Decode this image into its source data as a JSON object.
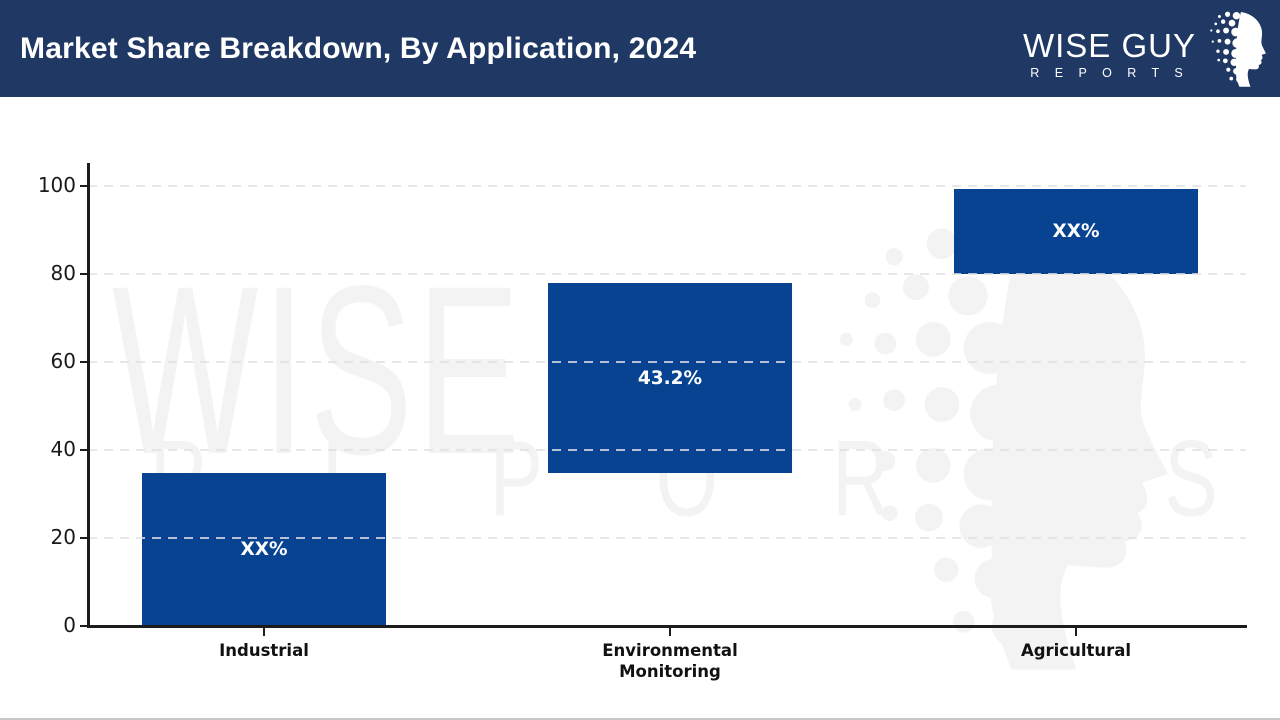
{
  "header": {
    "title": "Market Share Breakdown, By Application, 2024",
    "logo": {
      "wordmark": "WISE GUY",
      "subtext": "R E P O R T S"
    }
  },
  "watermark": {
    "word": "WISE",
    "subtext": "R E P O R T S"
  },
  "colors": {
    "header_bg": "#203864",
    "bar_blue": "#074391",
    "axis": "#1c1c1c",
    "gridline": "#e1e1e4",
    "watermark": "#f3f3f3",
    "bar_label": "#ffffff"
  },
  "chart_data": {
    "type": "bar",
    "subtype": "waterfall",
    "title": "Market Share Breakdown, By Application, 2024",
    "xlabel": "",
    "ylabel": "",
    "ylim": [
      0,
      100
    ],
    "yticks": [
      0,
      20,
      40,
      60,
      80,
      100
    ],
    "grid": "horizontal-dashed",
    "legend": "none",
    "categories": [
      "Industrial",
      "Environmental Monitoring",
      "Agricultural"
    ],
    "bars": [
      {
        "category": "Industrial",
        "from": 0,
        "to": 34.7,
        "label": "XX%"
      },
      {
        "category": "Environmental Monitoring",
        "from": 34.7,
        "to": 77.9,
        "label": "43.2%"
      },
      {
        "category": "Agricultural",
        "from": 80,
        "to": 99.4,
        "label": "XX%"
      }
    ]
  }
}
